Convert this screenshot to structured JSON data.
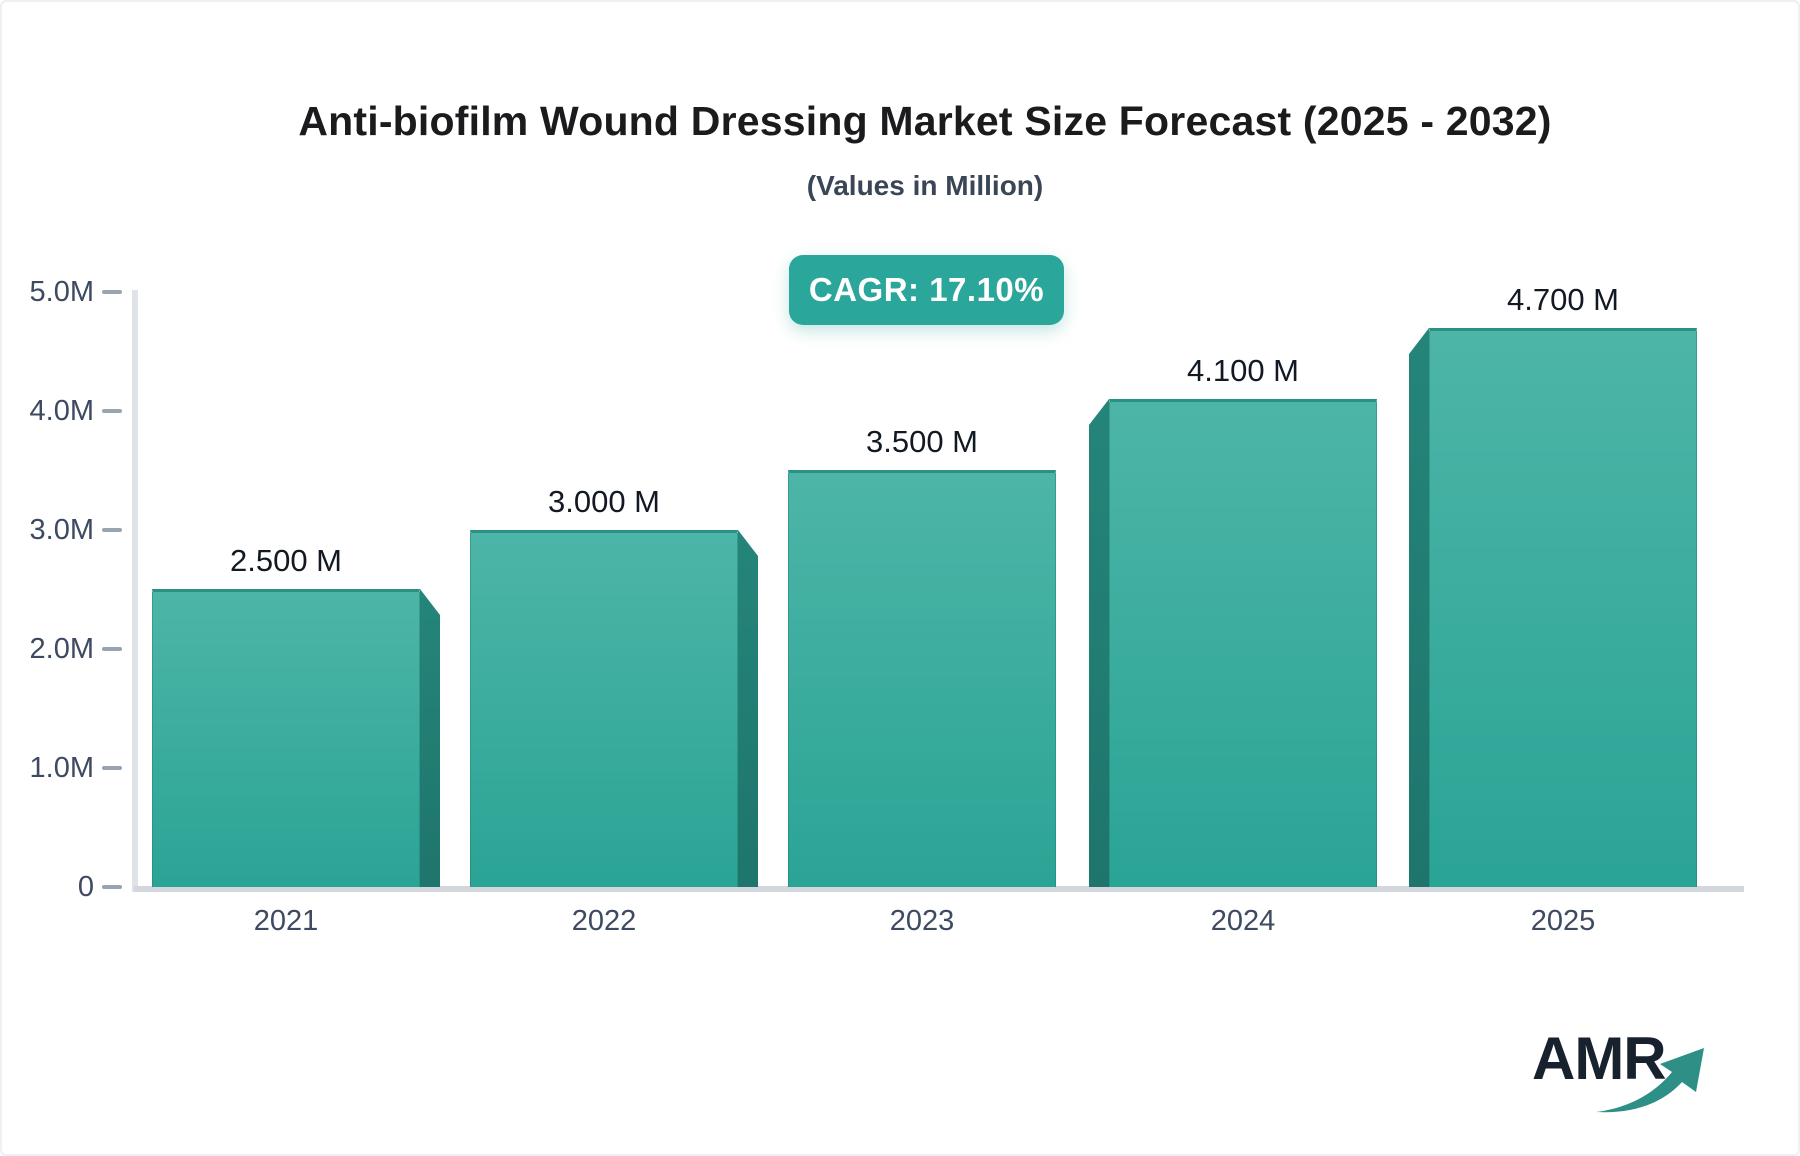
{
  "header": {
    "title": "Anti-biofilm Wound Dressing Market Size Forecast (2025 - 2032)",
    "subtitle": "(Values in Million)"
  },
  "badge": {
    "label": "CAGR: 17.10%"
  },
  "chart_data": {
    "type": "bar",
    "title": "Anti-biofilm Wound Dressing Market Size Forecast (2025 - 2032)",
    "subtitle": "(Values in Million)",
    "categories": [
      "2021",
      "2022",
      "2023",
      "2024",
      "2025"
    ],
    "values": [
      2.5,
      3.0,
      3.5,
      4.1,
      4.7
    ],
    "bar_labels": [
      "2.500 M",
      "3.000 M",
      "3.500 M",
      "4.100 M",
      "4.700 M"
    ],
    "cagr_percent": "17.10%",
    "xlabel": "",
    "ylabel": "",
    "ylim": [
      0,
      5.0
    ],
    "y_ticks": [
      {
        "label": "5.0M",
        "value": 5.0
      },
      {
        "label": "4.0M",
        "value": 4.0
      },
      {
        "label": "3.0M",
        "value": 3.0
      },
      {
        "label": "2.0M",
        "value": 2.0
      },
      {
        "label": "1.0M",
        "value": 1.0
      },
      {
        "label": "0",
        "value": 0.0
      }
    ],
    "grid": false,
    "legend": false,
    "colors": {
      "bar_gradient_top": "#4db5a8",
      "bar_gradient_bottom": "#2aa495",
      "bar_side_top": "#25857a",
      "bar_side_bottom": "#1e756c",
      "bar_edge": "#2b9185",
      "axis_line": "#dfe2e6",
      "baseline": "#d3d6dc",
      "tick": "#9aa3b0",
      "badge_bg": "#2ba69b",
      "title": "#1b1b1d",
      "subtitle": "#3a4556",
      "axis_label": "#3d4a61",
      "value_label": "#121923",
      "logo_text": "#17222e",
      "logo_arrow": "#2d8f86"
    }
  },
  "logo": {
    "text": "AMR",
    "icon": "trend-arrow-icon"
  }
}
